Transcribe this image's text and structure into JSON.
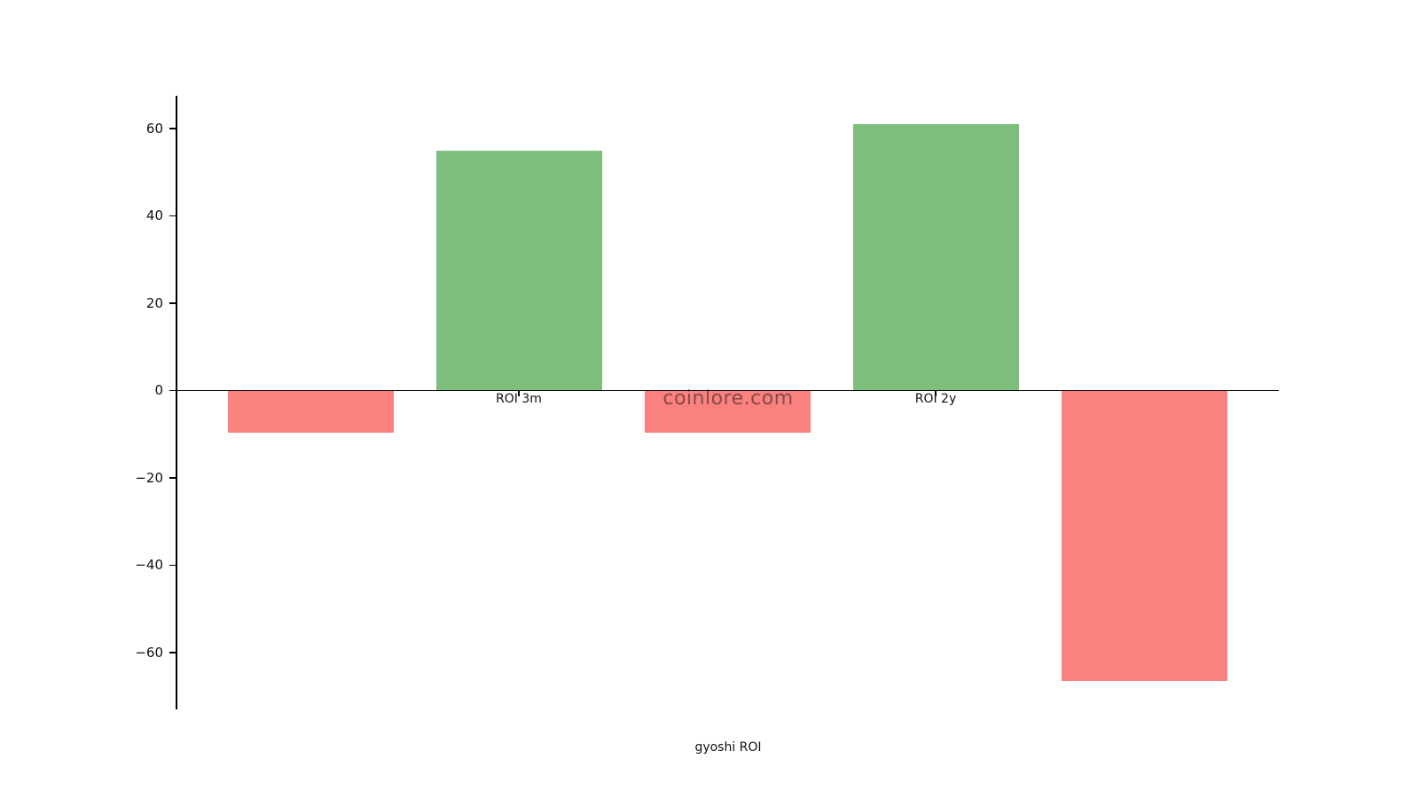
{
  "page": {
    "background_color": "#ffffff"
  },
  "chart_data": {
    "type": "bar",
    "title": "",
    "xlabel": "gyoshi ROI",
    "ylabel": "",
    "categories": [
      "",
      "ROI 3m",
      "",
      "ROI 2y",
      ""
    ],
    "values": [
      -9.6,
      54.9,
      -9.6,
      61.1,
      -66.6
    ],
    "yticks": [
      {
        "value": 60,
        "label": "60"
      },
      {
        "value": 40,
        "label": "40"
      },
      {
        "value": 20,
        "label": "20"
      },
      {
        "value": 0,
        "label": "0"
      },
      {
        "value": -20,
        "label": "−20"
      },
      {
        "value": -40,
        "label": "−40"
      },
      {
        "value": -60,
        "label": "−60"
      }
    ],
    "ylim": [
      -73,
      67.5
    ],
    "grid": false,
    "legend_position": "none",
    "positive_color": "#7dbe7c",
    "negative_color": "#fa817d",
    "axis_color": "#000000",
    "watermark": "coinlore.com"
  }
}
